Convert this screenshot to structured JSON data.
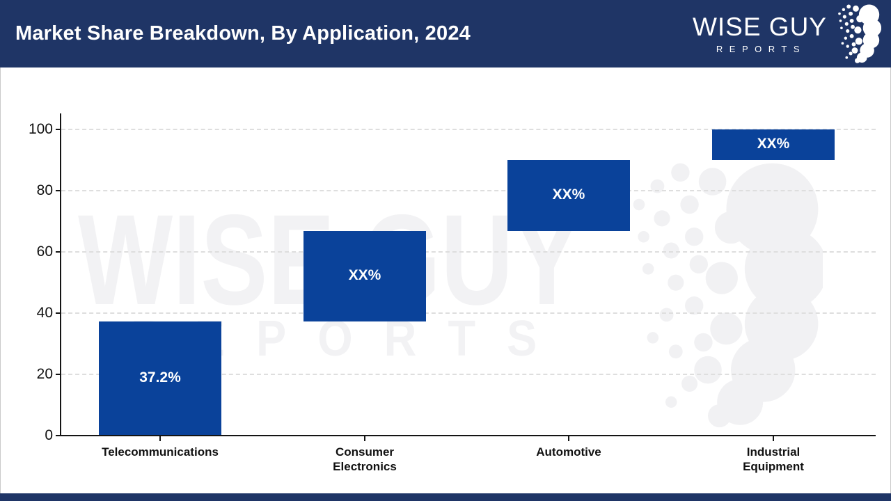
{
  "header": {
    "title": "Market Share Breakdown, By Application, 2024",
    "bg_color": "#1f3566",
    "logo": {
      "line1": "WISE GUY",
      "line2": "REPORTS"
    }
  },
  "watermark": {
    "line1": "WISE GUY",
    "line2": "REPORTS"
  },
  "chart_data": {
    "type": "bar",
    "variant": "waterfall",
    "title": "Market Share Breakdown, By Application, 2024",
    "categories": [
      "Telecommunications",
      "Consumer\nElectronics",
      "Automotive",
      "Industrial\nEquipment"
    ],
    "bars": [
      {
        "category": "Telecommunications",
        "start": 0,
        "end": 37.2,
        "label": "37.2%"
      },
      {
        "category": "Consumer\nElectronics",
        "start": 37.2,
        "end": 66.9,
        "label": "XX%"
      },
      {
        "category": "Automotive",
        "start": 66.9,
        "end": 90.1,
        "label": "XX%"
      },
      {
        "category": "Industrial\nEquipment",
        "start": 90.1,
        "end": 100,
        "label": "XX%"
      }
    ],
    "ylim": [
      0,
      100
    ],
    "yticks": [
      0,
      20,
      40,
      60,
      80,
      100
    ],
    "xlabel": "",
    "ylabel": "",
    "bar_color": "#0a429a",
    "bar_label_color": "#ffffff",
    "axis_color": "#141414",
    "grid": {
      "axis": "y",
      "style": "dashed",
      "color": "#dedede"
    },
    "legend": false
  }
}
